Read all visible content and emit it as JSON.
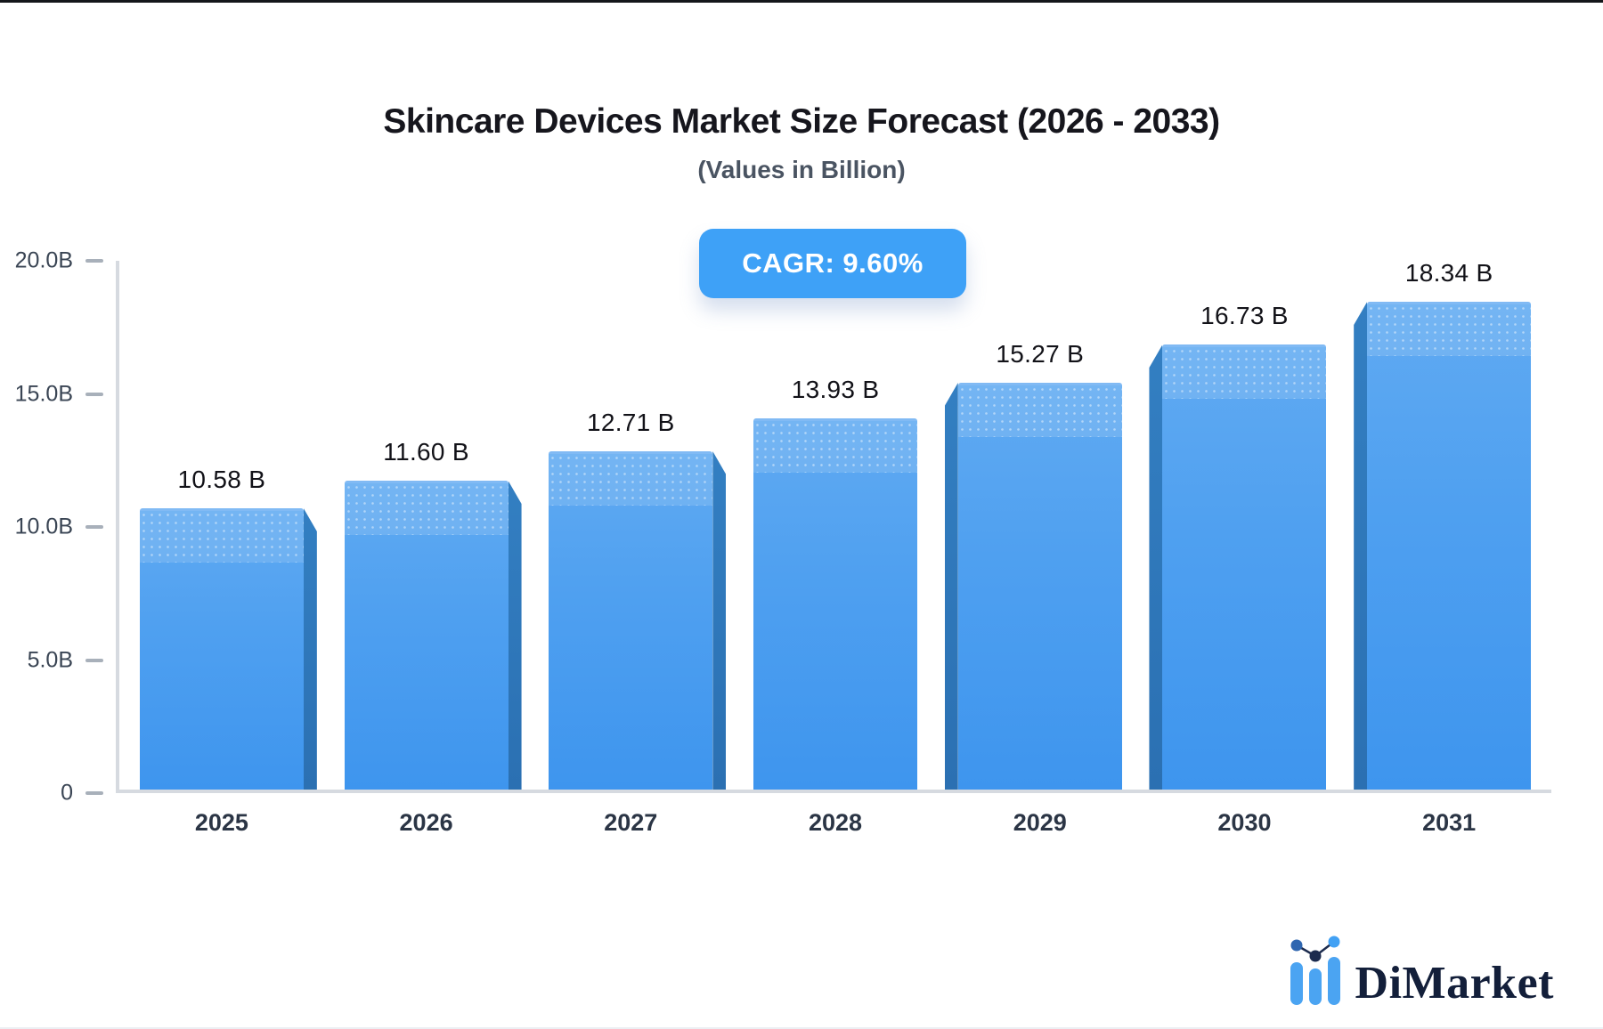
{
  "title": "Skincare Devices Market Size Forecast (2026 - 2033)",
  "subtitle": "(Values in Billion)",
  "cagr_badge": "CAGR: 9.60%",
  "chart_data": {
    "type": "bar",
    "categories": [
      "2025",
      "2026",
      "2027",
      "2028",
      "2029",
      "2030",
      "2031"
    ],
    "values": [
      10.58,
      11.6,
      12.71,
      13.93,
      15.27,
      16.73,
      18.34
    ],
    "value_labels": [
      "10.58 B",
      "11.60 B",
      "12.71 B",
      "13.93 B",
      "15.27 B",
      "16.73 B",
      "18.34 B"
    ],
    "y_ticks": [
      {
        "label": "20.0B",
        "value": 20
      },
      {
        "label": "15.0B",
        "value": 15
      },
      {
        "label": "10.0B",
        "value": 10
      },
      {
        "label": "5.0B",
        "value": 5
      },
      {
        "label": "0",
        "value": 0
      }
    ],
    "ylim": [
      0,
      20
    ],
    "grid": false,
    "legend": null,
    "title": "Skincare Devices Market Size Forecast (2026 - 2033)",
    "subtitle": "(Values in Billion)"
  },
  "colors": {
    "bar_face_top": "#60AAF2",
    "bar_face_bottom": "#3E95EE",
    "bar_side": "#2E77B8",
    "badge_bg": "#3EA1F7",
    "axis_line": "#D6DAE0",
    "logo_navy": "#131F3A",
    "logo_blue": "#4BA4F2"
  },
  "branding": {
    "logo_text": "DiMarket"
  }
}
